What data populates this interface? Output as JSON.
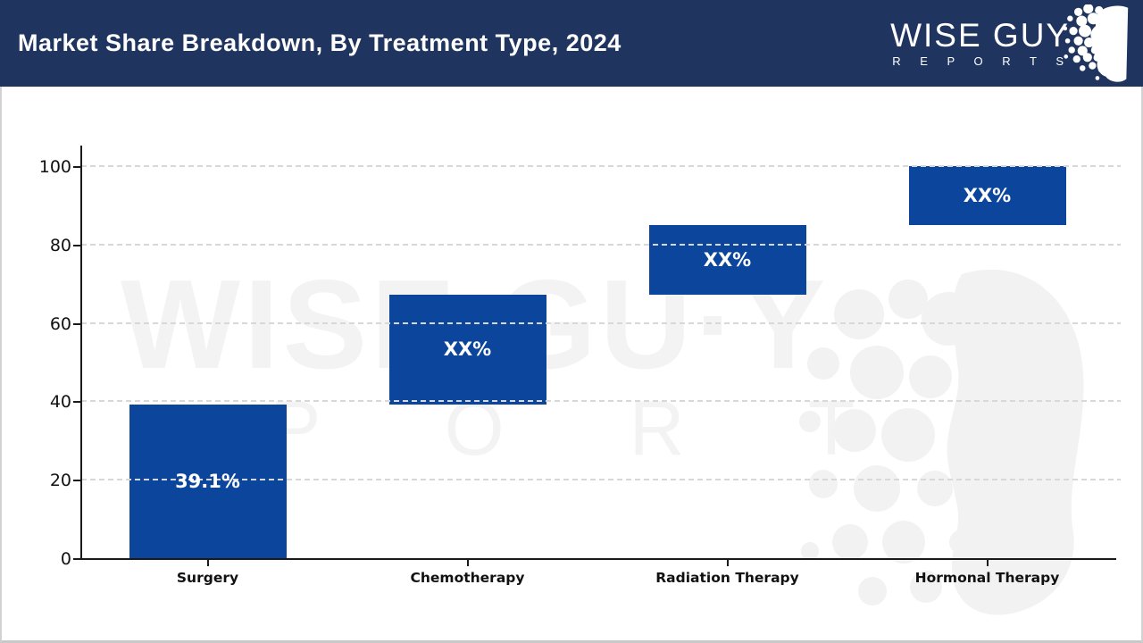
{
  "header": {
    "title": "Market Share Breakdown, By Treatment Type, 2024",
    "logo": {
      "name": "WISE GUY",
      "sub": "R E P O R T S",
      "icon": "dotted-head-profile"
    }
  },
  "watermark": {
    "line1": "WISE GU·Y",
    "line2": "P O R T S"
  },
  "chart_data": {
    "type": "bar",
    "subtype": "waterfall",
    "title": "Market Share Breakdown, By Treatment Type, 2024",
    "categories": [
      "Surgery",
      "Chemotherapy",
      "Radiation Therapy",
      "Hormonal Therapy"
    ],
    "segments": [
      {
        "category": "Surgery",
        "start": 0,
        "end": 39.1,
        "label": "39.1%"
      },
      {
        "category": "Chemotherapy",
        "start": 39.1,
        "end": 67.3,
        "label": "XX%"
      },
      {
        "category": "Radiation Therapy",
        "start": 67.3,
        "end": 85.0,
        "label": "XX%"
      },
      {
        "category": "Hormonal Therapy",
        "start": 85.0,
        "end": 100,
        "label": "XX%"
      }
    ],
    "ylim": [
      0,
      100
    ],
    "yticks": [
      0,
      20,
      40,
      60,
      80,
      100
    ],
    "xlabel": "",
    "ylabel": "",
    "grid": "horizontal-dashed",
    "legend": "none",
    "bar_color": "#0b459c",
    "label_color": "#ffffff"
  }
}
